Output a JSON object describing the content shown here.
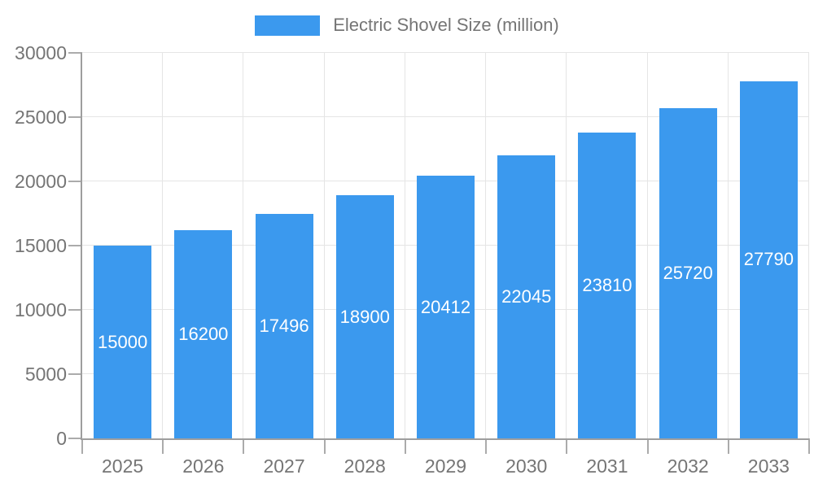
{
  "chart_data": {
    "type": "bar",
    "title": "Electric Shovel Size (million)",
    "categories": [
      "2025",
      "2026",
      "2027",
      "2028",
      "2029",
      "2030",
      "2031",
      "2032",
      "2033"
    ],
    "values": [
      15000,
      16200,
      17496,
      18900,
      20412,
      22045,
      23810,
      25720,
      27790
    ],
    "bar_labels": [
      "15000",
      "16200",
      "17496",
      "18900",
      "20412",
      "22045",
      "23810",
      "25720",
      "27790"
    ],
    "xlabel": "",
    "ylabel": "",
    "ylim": [
      0,
      30000
    ],
    "yticks": [
      0,
      5000,
      10000,
      15000,
      20000,
      25000,
      30000
    ],
    "grid": true,
    "legend": {
      "position": "top",
      "entries": [
        "Electric Shovel Size (million)"
      ]
    },
    "colors": {
      "bar": "#3B99EE",
      "bar_label_text": "#FFFFFF",
      "axis_line": "#9E9E9E",
      "tick_mark": "#ABABAB",
      "grid_line": "#E5E5E5",
      "tick_label_text": "#757575",
      "legend_text": "#757575",
      "background": "#FFFFFF"
    }
  }
}
